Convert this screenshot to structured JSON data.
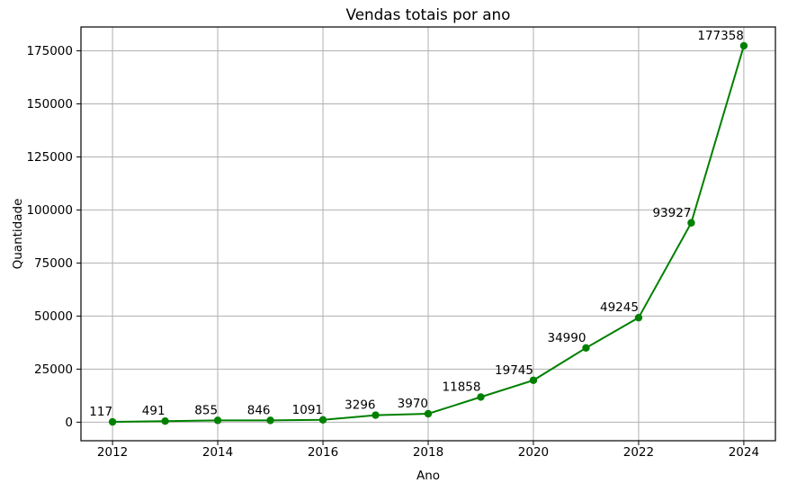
{
  "chart_data": {
    "type": "line",
    "title": "Vendas totais por ano",
    "xlabel": "Ano",
    "ylabel": "Quantidade",
    "x": [
      2012,
      2013,
      2014,
      2015,
      2016,
      2017,
      2018,
      2019,
      2020,
      2021,
      2022,
      2023,
      2024
    ],
    "values": [
      117,
      491,
      855,
      846,
      1091,
      3296,
      3970,
      11858,
      19745,
      34990,
      49245,
      93927,
      177358
    ],
    "x_ticks": [
      2012,
      2014,
      2016,
      2018,
      2020,
      2022,
      2024
    ],
    "y_ticks": [
      0,
      25000,
      50000,
      75000,
      100000,
      125000,
      150000,
      175000
    ],
    "xlim": [
      2011.4,
      2024.6
    ],
    "ylim": [
      -8745,
      186220
    ],
    "grid": true,
    "legend": null,
    "line_color": "#008000",
    "marker": "o",
    "marker_color": "#008000",
    "grid_color": "#b0b0b0",
    "spine_color": "#000000",
    "text_color": "#000000",
    "background": "#ffffff"
  }
}
